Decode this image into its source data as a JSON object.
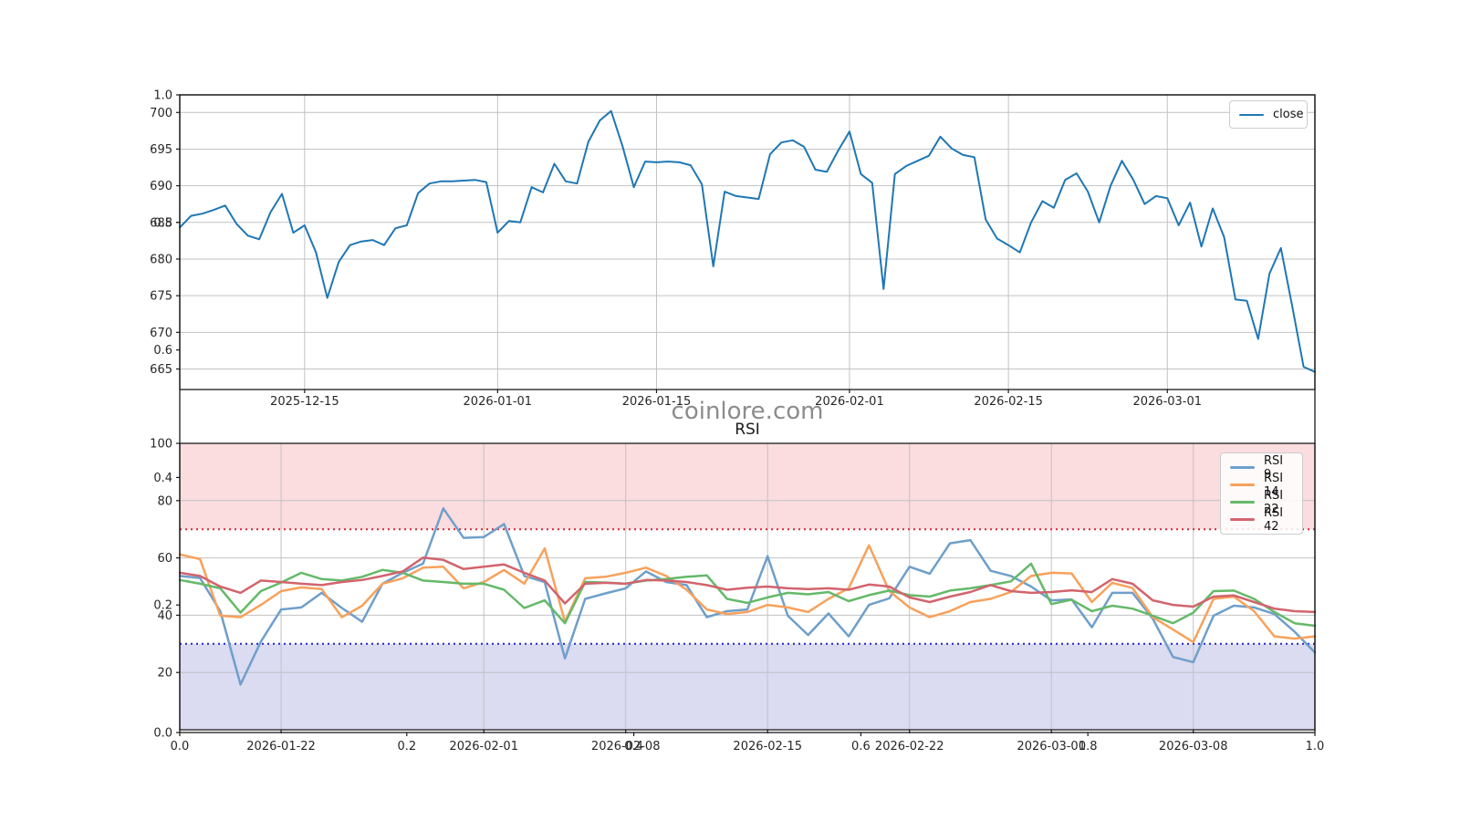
{
  "watermark": "coinlore.com",
  "overlay_axis": {
    "y_ticks": [
      "1.0",
      "0.8",
      "0.6",
      "0.4",
      "0.2",
      "0.0"
    ],
    "x_ticks": [
      "0.0",
      "0.2",
      "0.4",
      "0.6",
      "0.8",
      "1.0"
    ]
  },
  "chart_data": [
    {
      "id": "price",
      "type": "line",
      "title": "",
      "legend_position": "upper right",
      "grid": true,
      "x_tick_labels": [
        "2025-12-15",
        "2026-01-01",
        "2026-01-15",
        "2026-02-01",
        "2026-02-15",
        "2026-03-01"
      ],
      "x_tick_indices": [
        11,
        28,
        42,
        59,
        73,
        87
      ],
      "y_ticks": [
        665,
        670,
        675,
        680,
        685,
        690,
        695,
        700
      ],
      "ylim": [
        662.2,
        702.4
      ],
      "series": [
        {
          "name": "close",
          "color": "#1f77b4",
          "values": [
            684.3,
            685.9,
            686.2,
            686.7,
            687.3,
            684.8,
            683.2,
            682.7,
            686.4,
            688.9,
            683.6,
            684.6,
            680.9,
            674.7,
            679.6,
            681.9,
            682.4,
            682.6,
            681.9,
            684.2,
            684.6,
            689.0,
            690.3,
            690.6,
            690.6,
            690.7,
            690.8,
            690.5,
            683.6,
            685.2,
            685.0,
            689.8,
            689.1,
            693.0,
            690.6,
            690.3,
            696.0,
            698.9,
            700.2,
            695.4,
            689.8,
            693.3,
            693.2,
            693.3,
            693.2,
            692.8,
            690.2,
            679.0,
            689.2,
            688.6,
            688.4,
            688.2,
            694.3,
            695.9,
            696.2,
            695.3,
            692.2,
            691.9,
            694.8,
            697.4,
            691.6,
            690.4,
            675.9,
            691.6,
            692.7,
            693.4,
            694.1,
            696.7,
            695.1,
            694.2,
            693.9,
            685.4,
            682.8,
            681.9,
            680.9,
            685.0,
            687.9,
            687.0,
            690.8,
            691.7,
            689.2,
            685.0,
            690.0,
            693.4,
            690.8,
            687.5,
            688.6,
            688.3,
            684.6,
            687.7,
            681.7,
            686.9,
            683.0,
            674.5,
            674.3,
            669.1,
            678.0,
            681.5,
            673.6,
            665.3,
            664.6
          ]
        }
      ]
    },
    {
      "id": "rsi",
      "type": "line",
      "title": "RSI",
      "legend_position": "upper right",
      "grid": true,
      "x_tick_labels": [
        "2026-01-22",
        "2026-02-01",
        "2026-02-08",
        "2026-02-15",
        "2026-02-22",
        "2026-03-01",
        "2026-03-08"
      ],
      "x_tick_indices": [
        5,
        15,
        22,
        29,
        36,
        43,
        50
      ],
      "y_ticks": [
        20,
        40,
        60,
        80,
        100
      ],
      "ylim": [
        0,
        100
      ],
      "bands": [
        {
          "name": "overbought",
          "from": 70,
          "to": 100,
          "fill": "#fbdcdf",
          "level": 70,
          "line_color": "#dc2333"
        },
        {
          "name": "oversold",
          "from": 0,
          "to": 30,
          "fill": "#dbdbf2",
          "level": 30,
          "line_color": "#2323cf"
        }
      ],
      "series": [
        {
          "name": "RSI 9",
          "color": "#6f9fca",
          "values": [
            53.7,
            53.0,
            41.4,
            15.8,
            30.8,
            42.0,
            42.7,
            47.8,
            42.5,
            37.7,
            51.0,
            54.8,
            58.0,
            77.3,
            67.0,
            67.3,
            71.8,
            53.7,
            51.6,
            24.9,
            45.7,
            47.6,
            49.4,
            55.3,
            51.6,
            50.5,
            39.3,
            41.4,
            42.0,
            60.6,
            39.8,
            33.1,
            40.6,
            32.6,
            43.6,
            45.9,
            56.9,
            54.5,
            65.1,
            66.2,
            55.5,
            53.7,
            50.0,
            45.2,
            45.5,
            35.8,
            47.8,
            47.8,
            38.8,
            25.4,
            23.6,
            39.8,
            43.3,
            42.7,
            40.4,
            34.2,
            27.0
          ]
        },
        {
          "name": "RSI 14",
          "color": "#f8a15b",
          "values": [
            61.2,
            59.6,
            39.8,
            39.3,
            43.6,
            48.4,
            49.7,
            49.1,
            39.3,
            43.3,
            51.0,
            52.9,
            56.6,
            56.9,
            49.4,
            51.6,
            55.8,
            51.0,
            63.3,
            37.7,
            52.9,
            53.4,
            54.8,
            56.6,
            53.7,
            48.9,
            42.0,
            40.4,
            41.1,
            43.6,
            42.7,
            41.1,
            45.7,
            49.4,
            64.4,
            48.4,
            42.7,
            39.3,
            41.4,
            44.6,
            45.7,
            48.1,
            53.7,
            54.8,
            54.6,
            44.6,
            51.3,
            49.5,
            39.3,
            35.0,
            30.6,
            45.7,
            46.5,
            41.4,
            32.6,
            31.8,
            32.6
          ]
        },
        {
          "name": "RSI 22",
          "color": "#65b969",
          "values": [
            52.3,
            51.0,
            49.4,
            40.9,
            48.4,
            51.4,
            54.8,
            52.6,
            52.1,
            53.4,
            55.8,
            54.8,
            52.1,
            51.6,
            51.0,
            51.0,
            48.9,
            42.5,
            45.2,
            37.2,
            51.6,
            51.4,
            51.0,
            52.1,
            52.6,
            53.4,
            53.9,
            45.7,
            44.3,
            46.2,
            47.8,
            47.3,
            48.1,
            44.9,
            47.0,
            48.6,
            47.0,
            46.5,
            48.6,
            49.4,
            50.5,
            51.8,
            58.0,
            43.9,
            45.4,
            41.4,
            43.3,
            42.3,
            39.8,
            37.2,
            40.9,
            48.4,
            48.6,
            45.7,
            41.1,
            37.2,
            36.3
          ]
        },
        {
          "name": "RSI 42",
          "color": "#d2646d",
          "values": [
            54.8,
            53.7,
            50.0,
            47.8,
            52.1,
            51.6,
            51.0,
            50.5,
            51.6,
            52.3,
            53.7,
            55.3,
            60.1,
            59.3,
            56.1,
            56.9,
            57.7,
            54.8,
            52.1,
            44.1,
            51.0,
            51.3,
            51.0,
            52.3,
            52.1,
            51.6,
            50.5,
            48.9,
            49.6,
            50.0,
            49.4,
            49.1,
            49.4,
            48.9,
            50.7,
            50.0,
            46.2,
            44.6,
            46.5,
            48.1,
            50.5,
            48.4,
            47.8,
            48.1,
            48.7,
            48.1,
            52.6,
            51.0,
            45.2,
            43.6,
            43.0,
            46.5,
            46.9,
            44.6,
            42.3,
            41.4,
            41.1
          ]
        }
      ]
    }
  ],
  "style": {
    "grid_color": "#c2c2c2",
    "spine_color": "#1a1a1a",
    "tick_label_color": "#262626",
    "watermark_color": "#8c8c8c"
  }
}
